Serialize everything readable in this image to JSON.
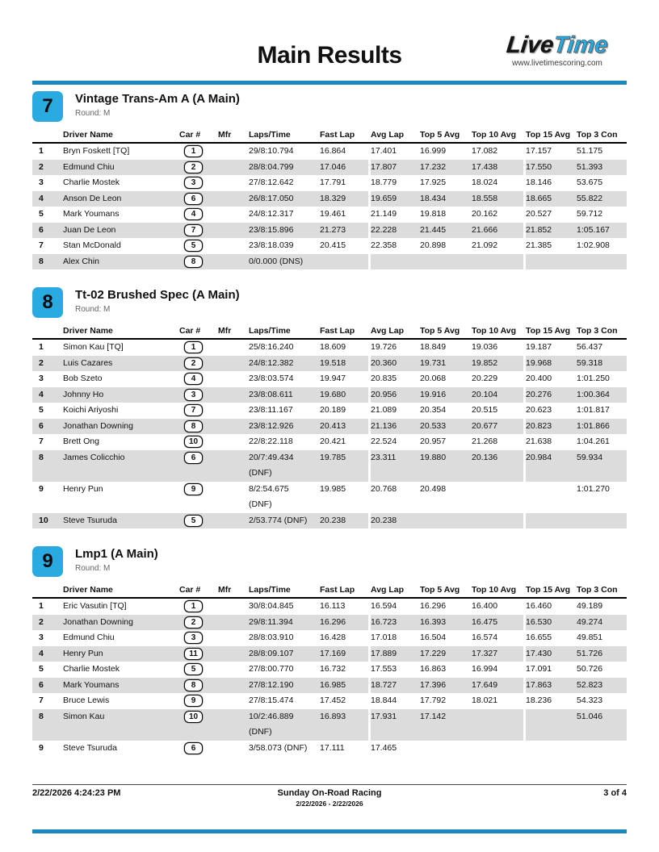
{
  "header": {
    "title": "Main Results",
    "logo_live": "Live",
    "logo_time": "Time",
    "logo_url": "www.livetimescoring.com"
  },
  "colors": {
    "accent_cyan": "#29abe2",
    "rule_blue": "#1d85bd",
    "stripe_gray": "#dcdcdc"
  },
  "columns": [
    "",
    "Driver Name",
    "Car #",
    "Mfr",
    "Laps/Time",
    "Fast Lap",
    "Avg Lap",
    "Top 5 Avg",
    "Top 10 Avg",
    "Top 15 Avg",
    "Top 3 Con"
  ],
  "sections": [
    {
      "round": "7",
      "title": "Vintage Trans-Am A (A Main)",
      "subtitle": "Round: M",
      "rows": [
        {
          "pos": "1",
          "driver": "Bryn Foskett [TQ]",
          "car": "1",
          "mfr": "",
          "laps": "29/8:10.794",
          "fast": "16.864",
          "avg": "17.401",
          "t5": "16.999",
          "t10": "17.082",
          "t15": "17.157",
          "t3": "51.175"
        },
        {
          "pos": "2",
          "driver": "Edmund Chiu",
          "car": "2",
          "mfr": "",
          "laps": "28/8:04.799",
          "fast": "17.046",
          "avg": "17.807",
          "t5": "17.232",
          "t10": "17.438",
          "t15": "17.550",
          "t3": "51.393"
        },
        {
          "pos": "3",
          "driver": "Charlie Mostek",
          "car": "3",
          "mfr": "",
          "laps": "27/8:12.642",
          "fast": "17.791",
          "avg": "18.779",
          "t5": "17.925",
          "t10": "18.024",
          "t15": "18.146",
          "t3": "53.675"
        },
        {
          "pos": "4",
          "driver": "Anson De Leon",
          "car": "6",
          "mfr": "",
          "laps": "26/8:17.050",
          "fast": "18.329",
          "avg": "19.659",
          "t5": "18.434",
          "t10": "18.558",
          "t15": "18.665",
          "t3": "55.822"
        },
        {
          "pos": "5",
          "driver": "Mark Youmans",
          "car": "4",
          "mfr": "",
          "laps": "24/8:12.317",
          "fast": "19.461",
          "avg": "21.149",
          "t5": "19.818",
          "t10": "20.162",
          "t15": "20.527",
          "t3": "59.712"
        },
        {
          "pos": "6",
          "driver": "Juan De Leon",
          "car": "7",
          "mfr": "",
          "laps": "23/8:15.896",
          "fast": "21.273",
          "avg": "22.228",
          "t5": "21.445",
          "t10": "21.666",
          "t15": "21.852",
          "t3": "1:05.167"
        },
        {
          "pos": "7",
          "driver": "Stan McDonald",
          "car": "5",
          "mfr": "",
          "laps": "23/8:18.039",
          "fast": "20.415",
          "avg": "22.358",
          "t5": "20.898",
          "t10": "21.092",
          "t15": "21.385",
          "t3": "1:02.908"
        },
        {
          "pos": "8",
          "driver": "Alex Chin",
          "car": "8",
          "mfr": "",
          "laps": "0/0.000 (DNS)",
          "fast": "",
          "avg": "",
          "t5": "",
          "t10": "",
          "t15": "",
          "t3": ""
        }
      ]
    },
    {
      "round": "8",
      "title": "Tt-02 Brushed Spec (A Main)",
      "subtitle": "Round: M",
      "rows": [
        {
          "pos": "1",
          "driver": "Simon Kau [TQ]",
          "car": "1",
          "mfr": "",
          "laps": "25/8:16.240",
          "fast": "18.609",
          "avg": "19.726",
          "t5": "18.849",
          "t10": "19.036",
          "t15": "19.187",
          "t3": "56.437"
        },
        {
          "pos": "2",
          "driver": "Luis Cazares",
          "car": "2",
          "mfr": "",
          "laps": "24/8:12.382",
          "fast": "19.518",
          "avg": "20.360",
          "t5": "19.731",
          "t10": "19.852",
          "t15": "19.968",
          "t3": "59.318"
        },
        {
          "pos": "3",
          "driver": "Bob Szeto",
          "car": "4",
          "mfr": "",
          "laps": "23/8:03.574",
          "fast": "19.947",
          "avg": "20.835",
          "t5": "20.068",
          "t10": "20.229",
          "t15": "20.400",
          "t3": "1:01.250"
        },
        {
          "pos": "4",
          "driver": "Johnny Ho",
          "car": "3",
          "mfr": "",
          "laps": "23/8:08.611",
          "fast": "19.680",
          "avg": "20.956",
          "t5": "19.916",
          "t10": "20.104",
          "t15": "20.276",
          "t3": "1:00.364"
        },
        {
          "pos": "5",
          "driver": "Koichi Ariyoshi",
          "car": "7",
          "mfr": "",
          "laps": "23/8:11.167",
          "fast": "20.189",
          "avg": "21.089",
          "t5": "20.354",
          "t10": "20.515",
          "t15": "20.623",
          "t3": "1:01.817"
        },
        {
          "pos": "6",
          "driver": "Jonathan Downing",
          "car": "8",
          "mfr": "",
          "laps": "23/8:12.926",
          "fast": "20.413",
          "avg": "21.136",
          "t5": "20.533",
          "t10": "20.677",
          "t15": "20.823",
          "t3": "1:01.866"
        },
        {
          "pos": "7",
          "driver": "Brett Ong",
          "car": "10",
          "mfr": "",
          "laps": "22/8:22.118",
          "fast": "20.421",
          "avg": "22.524",
          "t5": "20.957",
          "t10": "21.268",
          "t15": "21.638",
          "t3": "1:04.261"
        },
        {
          "pos": "8",
          "driver": "James Colicchio",
          "car": "6",
          "mfr": "",
          "laps": "20/7:49.434",
          "laps2": "(DNF)",
          "fast": "19.785",
          "avg": "23.311",
          "t5": "19.880",
          "t10": "20.136",
          "t15": "20.984",
          "t3": "59.934"
        },
        {
          "pos": "9",
          "driver": "Henry Pun",
          "car": "9",
          "mfr": "",
          "laps": "8/2:54.675",
          "laps2": "(DNF)",
          "fast": "19.985",
          "avg": "20.768",
          "t5": "20.498",
          "t10": "",
          "t15": "",
          "t3": "1:01.270"
        },
        {
          "pos": "10",
          "driver": "Steve Tsuruda",
          "car": "5",
          "mfr": "",
          "laps": "2/53.774 (DNF)",
          "fast": "20.238",
          "avg": "20.238",
          "t5": "",
          "t10": "",
          "t15": "",
          "t3": ""
        }
      ]
    },
    {
      "round": "9",
      "title": "Lmp1 (A Main)",
      "subtitle": "Round: M",
      "rows": [
        {
          "pos": "1",
          "driver": "Eric Vasutin [TQ]",
          "car": "1",
          "mfr": "",
          "laps": "30/8:04.845",
          "fast": "16.113",
          "avg": "16.594",
          "t5": "16.296",
          "t10": "16.400",
          "t15": "16.460",
          "t3": "49.189"
        },
        {
          "pos": "2",
          "driver": "Jonathan Downing",
          "car": "2",
          "mfr": "",
          "laps": "29/8:11.394",
          "fast": "16.296",
          "avg": "16.723",
          "t5": "16.393",
          "t10": "16.475",
          "t15": "16.530",
          "t3": "49.274"
        },
        {
          "pos": "3",
          "driver": "Edmund Chiu",
          "car": "3",
          "mfr": "",
          "laps": "28/8:03.910",
          "fast": "16.428",
          "avg": "17.018",
          "t5": "16.504",
          "t10": "16.574",
          "t15": "16.655",
          "t3": "49.851"
        },
        {
          "pos": "4",
          "driver": "Henry Pun",
          "car": "11",
          "mfr": "",
          "laps": "28/8:09.107",
          "fast": "17.169",
          "avg": "17.889",
          "t5": "17.229",
          "t10": "17.327",
          "t15": "17.430",
          "t3": "51.726"
        },
        {
          "pos": "5",
          "driver": "Charlie Mostek",
          "car": "5",
          "mfr": "",
          "laps": "27/8:00.770",
          "fast": "16.732",
          "avg": "17.553",
          "t5": "16.863",
          "t10": "16.994",
          "t15": "17.091",
          "t3": "50.726"
        },
        {
          "pos": "6",
          "driver": "Mark Youmans",
          "car": "8",
          "mfr": "",
          "laps": "27/8:12.190",
          "fast": "16.985",
          "avg": "18.727",
          "t5": "17.396",
          "t10": "17.649",
          "t15": "17.863",
          "t3": "52.823"
        },
        {
          "pos": "7",
          "driver": "Bruce Lewis",
          "car": "9",
          "mfr": "",
          "laps": "27/8:15.474",
          "fast": "17.452",
          "avg": "18.844",
          "t5": "17.792",
          "t10": "18.021",
          "t15": "18.236",
          "t3": "54.323"
        },
        {
          "pos": "8",
          "driver": "Simon Kau",
          "car": "10",
          "mfr": "",
          "laps": "10/2:46.889",
          "laps2": "(DNF)",
          "fast": "16.893",
          "avg": "17.931",
          "t5": "17.142",
          "t10": "",
          "t15": "",
          "t3": "51.046"
        },
        {
          "pos": "9",
          "driver": "Steve Tsuruda",
          "car": "6",
          "mfr": "",
          "laps": "3/58.073 (DNF)",
          "fast": "17.111",
          "avg": "17.465",
          "t5": "",
          "t10": "",
          "t15": "",
          "t3": ""
        }
      ]
    }
  ],
  "footer": {
    "printed_at": "2/22/2026 4:24:23 PM",
    "event_name": "Sunday On-Road Racing",
    "event_dates": "2/22/2026 - 2/22/2026",
    "page_number": "3 of 4"
  }
}
